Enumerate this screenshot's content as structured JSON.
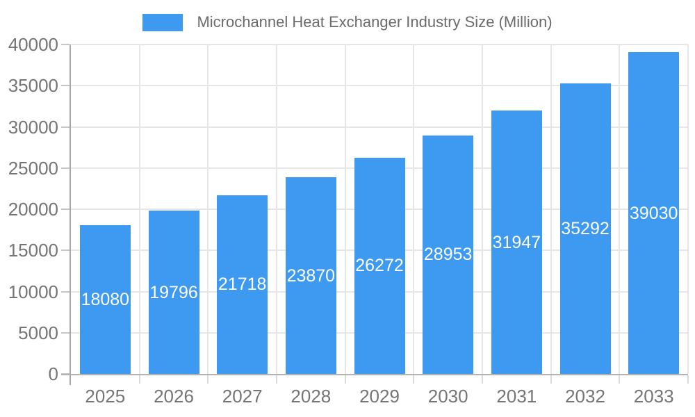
{
  "legend": {
    "label": "Microchannel Heat Exchanger Industry Size (Million)"
  },
  "chart_data": {
    "type": "bar",
    "title": "Microchannel Heat Exchanger Industry Size (Million)",
    "categories": [
      "2025",
      "2026",
      "2027",
      "2028",
      "2029",
      "2030",
      "2031",
      "2032",
      "2033"
    ],
    "values": [
      18080,
      19796,
      21718,
      23870,
      26272,
      28953,
      31947,
      35292,
      39030
    ],
    "xlabel": "",
    "ylabel": "",
    "ylim": [
      0,
      40000
    ],
    "ytick_step": 5000,
    "grid": true,
    "legend_position": "top",
    "bar_color": "#3d9af0",
    "value_label_color": "#ffffff",
    "axis_text_color": "#757575",
    "grid_color": "#e6e6e6"
  }
}
